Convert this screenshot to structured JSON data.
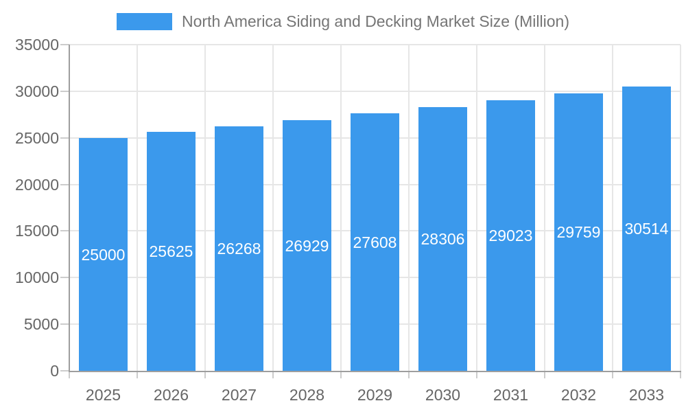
{
  "legend": {
    "label": "North America Siding and Decking Market Size (Million)"
  },
  "chart_data": {
    "type": "bar",
    "title": "North America Siding and Decking Market Size (Million)",
    "series": [
      {
        "name": "North America Siding and Decking Market Size (Million)",
        "values": [
          25000,
          25625,
          26268,
          26929,
          27608,
          28306,
          29023,
          29759,
          30514
        ]
      }
    ],
    "categories": [
      "2025",
      "2026",
      "2027",
      "2028",
      "2029",
      "2030",
      "2031",
      "2032",
      "2033"
    ],
    "value_labels": [
      "25000",
      "25625",
      "26268",
      "26929",
      "27608",
      "28306",
      "29023",
      "29759",
      "30514"
    ],
    "xlabel": "",
    "ylabel": "",
    "ylim": [
      0,
      35000
    ],
    "y_ticks": [
      0,
      5000,
      10000,
      15000,
      20000,
      25000,
      30000,
      35000
    ],
    "y_tick_labels": [
      "0",
      "5000",
      "10000",
      "15000",
      "20000",
      "25000",
      "30000",
      "35000"
    ],
    "grid": true,
    "legend_position": "top",
    "value_labels_inside_bars": true
  },
  "colors": {
    "bar": "#3b99ec",
    "gridline": "#e6e6e6",
    "axis_line": "#9e9e9e",
    "tick": "#cccccc",
    "axis_text": "#666666",
    "legend_text": "#757575",
    "value_label_text": "#ffffff",
    "background": "#ffffff"
  }
}
